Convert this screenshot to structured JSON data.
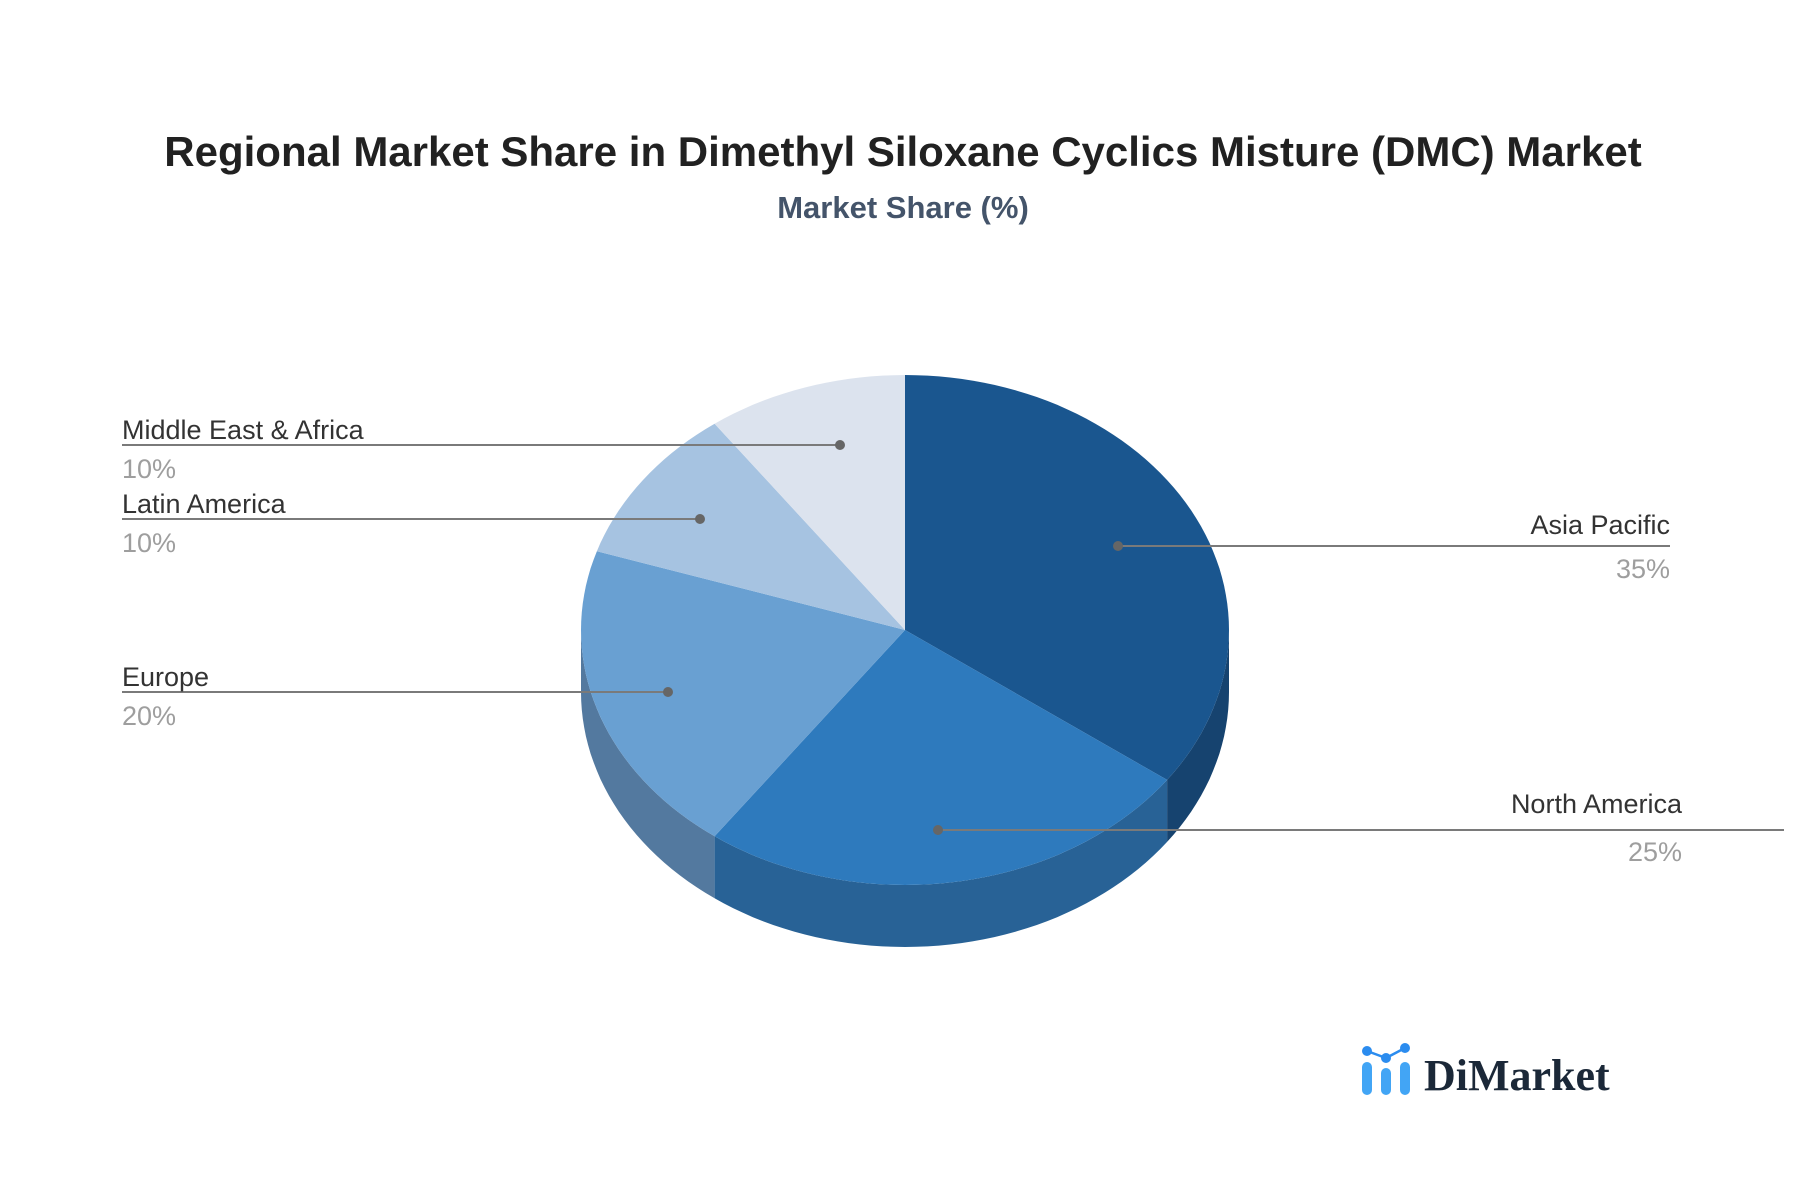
{
  "title": "Regional Market Share in Dimethyl Siloxane Cyclics Misture (DMC) Market",
  "subtitle": "Market Share (%)",
  "chart_data": {
    "type": "pie",
    "title": "Regional Market Share in Dimethyl Siloxane Cyclics Misture (DMC) Market",
    "subtitle": "Market Share (%)",
    "effect": "3d",
    "direction": "clockwise",
    "start_angle_deg": 0,
    "legend": "none",
    "labels_position": "callouts",
    "slices": [
      {
        "label": "Asia Pacific",
        "value": 35,
        "percent_label": "35%",
        "color": "#1A568F",
        "side_color": "#16436F"
      },
      {
        "label": "North America",
        "value": 25,
        "percent_label": "25%",
        "color": "#2E7ABD",
        "side_color": "#286296"
      },
      {
        "label": "Europe",
        "value": 20,
        "percent_label": "20%",
        "color": "#69A0D2",
        "side_color": "#53799F"
      },
      {
        "label": "Latin America",
        "value": 10,
        "percent_label": "10%",
        "color": "#A6C3E1",
        "side_color": "#8AA3BE"
      },
      {
        "label": "Middle East & Africa",
        "value": 10,
        "percent_label": "10%",
        "color": "#DCE3EE",
        "side_color": "#B5BDCA"
      }
    ],
    "leader_line_color": "#7A7A7A",
    "leader_dot_color": "#666666",
    "label_color": "#333333",
    "value_color": "#9E9E9E",
    "title_color": "#212121",
    "subtitle_color": "#44546A"
  },
  "brand": {
    "name": "DiMarket",
    "icon": "bar-line-chart-icon",
    "icon_color": "#42A5F5",
    "text_color": "#1B2838"
  }
}
